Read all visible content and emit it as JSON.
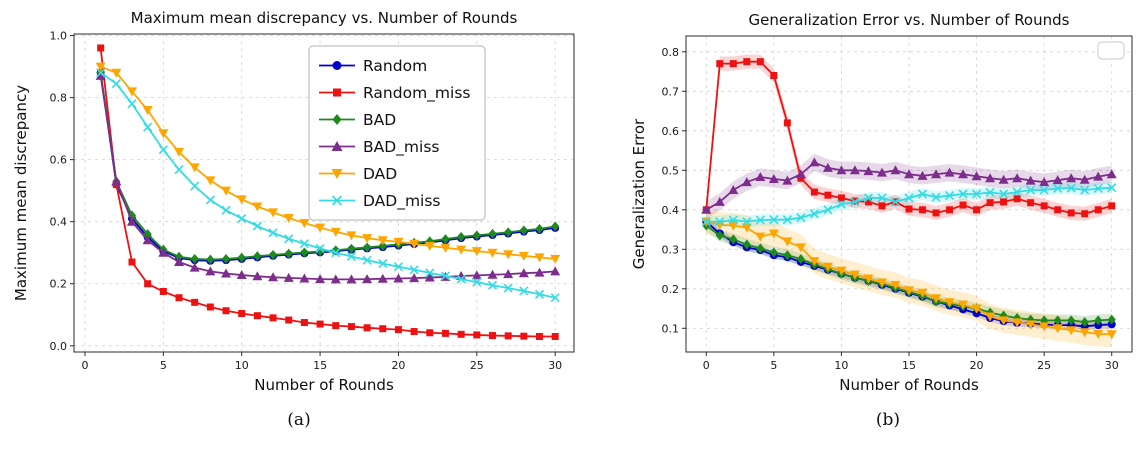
{
  "captions": {
    "a": "(a)",
    "b": "(b)"
  },
  "chart_data": [
    {
      "id": "mmd",
      "type": "line",
      "title": "Maximum mean discrepancy vs. Number of Rounds",
      "xlabel": "Number of Rounds",
      "ylabel": "Maximum mean discrepancy",
      "xlim": [
        -0.7,
        31.2
      ],
      "ylim": [
        -0.02,
        1.005
      ],
      "xticks": [
        0,
        5,
        10,
        15,
        20,
        25,
        30
      ],
      "yticks": [
        0.0,
        0.2,
        0.4,
        0.6,
        0.8,
        1.0
      ],
      "grid": true,
      "legend": {
        "visible": true,
        "position": "upper right",
        "empty_box": false
      },
      "x": [
        1,
        2,
        3,
        4,
        5,
        6,
        7,
        8,
        9,
        10,
        11,
        12,
        13,
        14,
        15,
        16,
        17,
        18,
        19,
        20,
        21,
        22,
        23,
        24,
        25,
        26,
        27,
        28,
        29,
        30
      ],
      "series": [
        {
          "name": "Random",
          "color": "#0000cc",
          "marker": "circle",
          "values": [
            0.88,
            0.52,
            0.41,
            0.35,
            0.305,
            0.283,
            0.276,
            0.274,
            0.276,
            0.28,
            0.285,
            0.29,
            0.294,
            0.298,
            0.301,
            0.305,
            0.31,
            0.314,
            0.318,
            0.323,
            0.328,
            0.333,
            0.34,
            0.347,
            0.352,
            0.357,
            0.362,
            0.368,
            0.373,
            0.38
          ]
        },
        {
          "name": "Random_miss",
          "color": "#ee1111",
          "marker": "square",
          "values": [
            0.96,
            0.52,
            0.27,
            0.2,
            0.175,
            0.155,
            0.14,
            0.125,
            0.113,
            0.104,
            0.097,
            0.09,
            0.083,
            0.075,
            0.07,
            0.065,
            0.062,
            0.058,
            0.055,
            0.052,
            0.046,
            0.042,
            0.04,
            0.037,
            0.035,
            0.033,
            0.032,
            0.031,
            0.03,
            0.03
          ]
        },
        {
          "name": "BAD",
          "color": "#1e8a1e",
          "marker": "diamond",
          "values": [
            0.88,
            0.53,
            0.42,
            0.36,
            0.31,
            0.287,
            0.28,
            0.278,
            0.28,
            0.284,
            0.289,
            0.293,
            0.297,
            0.301,
            0.304,
            0.308,
            0.313,
            0.317,
            0.322,
            0.327,
            0.332,
            0.337,
            0.344,
            0.351,
            0.356,
            0.361,
            0.366,
            0.372,
            0.377,
            0.385
          ]
        },
        {
          "name": "BAD_miss",
          "color": "#7d2e8d",
          "marker": "triangle-up",
          "values": [
            0.87,
            0.53,
            0.4,
            0.34,
            0.3,
            0.27,
            0.252,
            0.24,
            0.233,
            0.228,
            0.224,
            0.221,
            0.219,
            0.217,
            0.215,
            0.214,
            0.214,
            0.215,
            0.216,
            0.217,
            0.218,
            0.22,
            0.222,
            0.225,
            0.227,
            0.229,
            0.231,
            0.234,
            0.236,
            0.24
          ]
        },
        {
          "name": "DAD",
          "color": "#ffa500",
          "marker": "triangle-down",
          "values": [
            0.9,
            0.88,
            0.82,
            0.76,
            0.685,
            0.625,
            0.575,
            0.533,
            0.5,
            0.472,
            0.449,
            0.43,
            0.412,
            0.396,
            0.381,
            0.367,
            0.356,
            0.347,
            0.34,
            0.335,
            0.329,
            0.322,
            0.316,
            0.31,
            0.305,
            0.3,
            0.295,
            0.29,
            0.285,
            0.28
          ]
        },
        {
          "name": "DAD_miss",
          "color": "#35dbe4",
          "marker": "x",
          "values": [
            0.88,
            0.845,
            0.78,
            0.705,
            0.632,
            0.568,
            0.515,
            0.47,
            0.437,
            0.41,
            0.386,
            0.364,
            0.345,
            0.329,
            0.314,
            0.3,
            0.288,
            0.276,
            0.265,
            0.255,
            0.245,
            0.235,
            0.225,
            0.215,
            0.205,
            0.195,
            0.186,
            0.177,
            0.166,
            0.155
          ]
        }
      ]
    },
    {
      "id": "generr",
      "type": "line",
      "title": "Generalization Error vs. Number of Rounds",
      "xlabel": "Number of Rounds",
      "ylabel": "Generalization Error",
      "xlim": [
        -1.5,
        31.5
      ],
      "ylim": [
        0.04,
        0.84
      ],
      "xticks": [
        0,
        5,
        10,
        15,
        20,
        25,
        30
      ],
      "yticks": [
        0.1,
        0.2,
        0.3,
        0.4,
        0.5,
        0.6,
        0.7,
        0.8
      ],
      "grid": true,
      "legend": {
        "visible": false,
        "position": "upper right",
        "empty_box": true
      },
      "band_opacity": 0.18,
      "x": [
        0,
        1,
        2,
        3,
        4,
        5,
        6,
        7,
        8,
        9,
        10,
        11,
        12,
        13,
        14,
        15,
        16,
        17,
        18,
        19,
        20,
        21,
        22,
        23,
        24,
        25,
        26,
        27,
        28,
        29,
        30
      ],
      "series": [
        {
          "name": "Random",
          "color": "#0000cc",
          "marker": "circle",
          "band": 0.01,
          "values": [
            0.37,
            0.34,
            0.318,
            0.305,
            0.298,
            0.285,
            0.28,
            0.268,
            0.258,
            0.248,
            0.238,
            0.228,
            0.22,
            0.21,
            0.2,
            0.19,
            0.18,
            0.168,
            0.158,
            0.148,
            0.138,
            0.126,
            0.118,
            0.114,
            0.112,
            0.11,
            0.108,
            0.108,
            0.105,
            0.108,
            0.11
          ]
        },
        {
          "name": "Random_miss",
          "color": "#ee1111",
          "marker": "square",
          "band": 0.018,
          "values": [
            0.4,
            0.77,
            0.77,
            0.775,
            0.775,
            0.74,
            0.62,
            0.48,
            0.445,
            0.437,
            0.43,
            0.422,
            0.42,
            0.41,
            0.42,
            0.402,
            0.4,
            0.392,
            0.4,
            0.412,
            0.4,
            0.418,
            0.42,
            0.428,
            0.418,
            0.41,
            0.4,
            0.392,
            0.39,
            0.4,
            0.41
          ]
        },
        {
          "name": "BAD",
          "color": "#1e8a1e",
          "marker": "diamond",
          "band": 0.015,
          "values": [
            0.36,
            0.335,
            0.325,
            0.312,
            0.302,
            0.292,
            0.285,
            0.275,
            0.262,
            0.25,
            0.238,
            0.228,
            0.22,
            0.212,
            0.202,
            0.192,
            0.182,
            0.168,
            0.162,
            0.156,
            0.15,
            0.14,
            0.132,
            0.126,
            0.122,
            0.12,
            0.12,
            0.12,
            0.116,
            0.12,
            0.122
          ]
        },
        {
          "name": "BAD_miss",
          "color": "#7d2e8d",
          "marker": "triangle-up",
          "band": 0.022,
          "values": [
            0.4,
            0.42,
            0.45,
            0.47,
            0.483,
            0.478,
            0.474,
            0.49,
            0.52,
            0.506,
            0.5,
            0.5,
            0.498,
            0.494,
            0.5,
            0.49,
            0.486,
            0.49,
            0.494,
            0.49,
            0.485,
            0.48,
            0.476,
            0.48,
            0.474,
            0.47,
            0.475,
            0.48,
            0.476,
            0.484,
            0.49
          ]
        },
        {
          "name": "DAD",
          "color": "#ffa500",
          "marker": "triangle-down",
          "band": 0.032,
          "values": [
            0.37,
            0.362,
            0.36,
            0.355,
            0.332,
            0.34,
            0.32,
            0.305,
            0.27,
            0.256,
            0.246,
            0.236,
            0.226,
            0.216,
            0.21,
            0.196,
            0.19,
            0.176,
            0.166,
            0.16,
            0.15,
            0.13,
            0.12,
            0.115,
            0.11,
            0.105,
            0.1,
            0.095,
            0.09,
            0.086,
            0.085
          ]
        },
        {
          "name": "DAD_miss",
          "color": "#35dbe4",
          "marker": "x",
          "band": 0.015,
          "values": [
            0.37,
            0.37,
            0.374,
            0.37,
            0.374,
            0.375,
            0.375,
            0.38,
            0.39,
            0.4,
            0.414,
            0.42,
            0.43,
            0.43,
            0.42,
            0.43,
            0.44,
            0.432,
            0.436,
            0.44,
            0.44,
            0.444,
            0.44,
            0.445,
            0.45,
            0.45,
            0.454,
            0.455,
            0.45,
            0.454,
            0.456
          ]
        }
      ]
    }
  ]
}
